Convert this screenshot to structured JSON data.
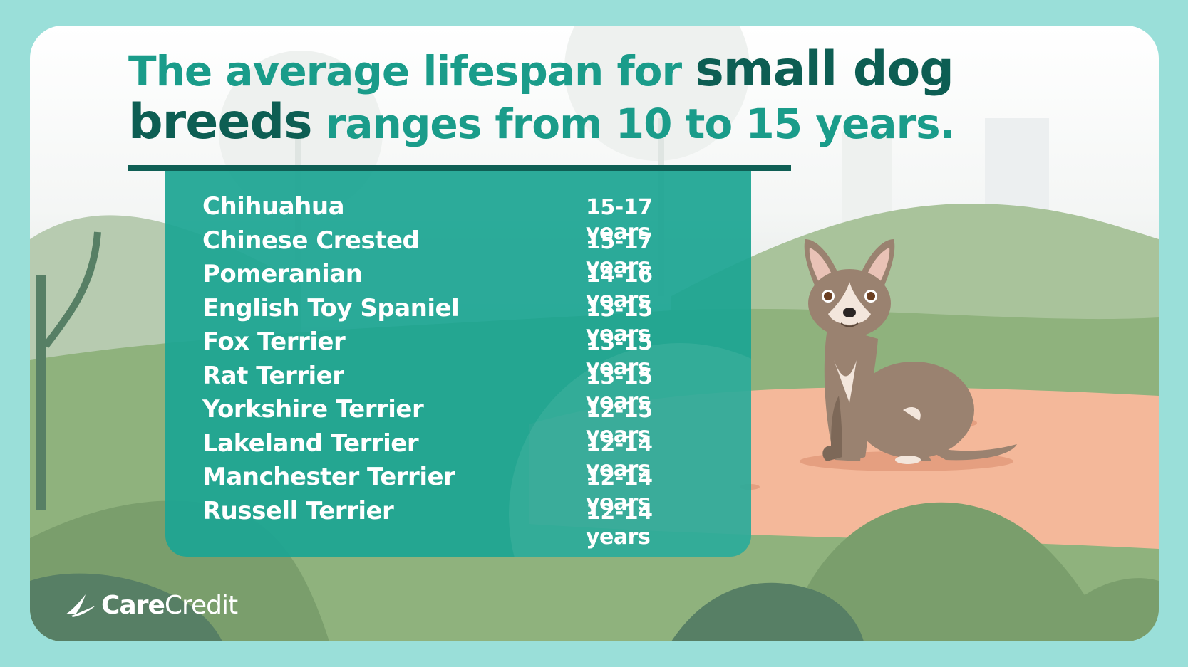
{
  "headline": {
    "part1": "The average lifespan for ",
    "emphasis1": "small dog",
    "emphasis2": "breeds",
    "part2": " ranges from 10 to 15 years."
  },
  "breeds": [
    {
      "name": "Chihuahua",
      "lifespan": "15-17 years"
    },
    {
      "name": "Chinese Crested",
      "lifespan": "15-17 years"
    },
    {
      "name": "Pomeranian",
      "lifespan": "14-16 years"
    },
    {
      "name": "English Toy Spaniel",
      "lifespan": "13-15 years"
    },
    {
      "name": "Fox Terrier",
      "lifespan": "13-15 years"
    },
    {
      "name": "Rat Terrier",
      "lifespan": "13-15 years"
    },
    {
      "name": "Yorkshire Terrier",
      "lifespan": "12-15 years"
    },
    {
      "name": "Lakeland Terrier",
      "lifespan": "12-14 years"
    },
    {
      "name": "Manchester Terrier",
      "lifespan": "12-14 years"
    },
    {
      "name": "Russell Terrier",
      "lifespan": "12-14 years"
    }
  ],
  "logo": {
    "bold": "Care",
    "light": "Credit"
  },
  "illustration": {
    "subject": "chihuahua-dog-illustration"
  },
  "colors": {
    "background": "#9adfd9",
    "headline": "#1a9c8a",
    "headline_emphasis": "#0d5e53",
    "panel": "#1ca592",
    "path": "#f4b89a",
    "hill": "#8fb27d"
  }
}
